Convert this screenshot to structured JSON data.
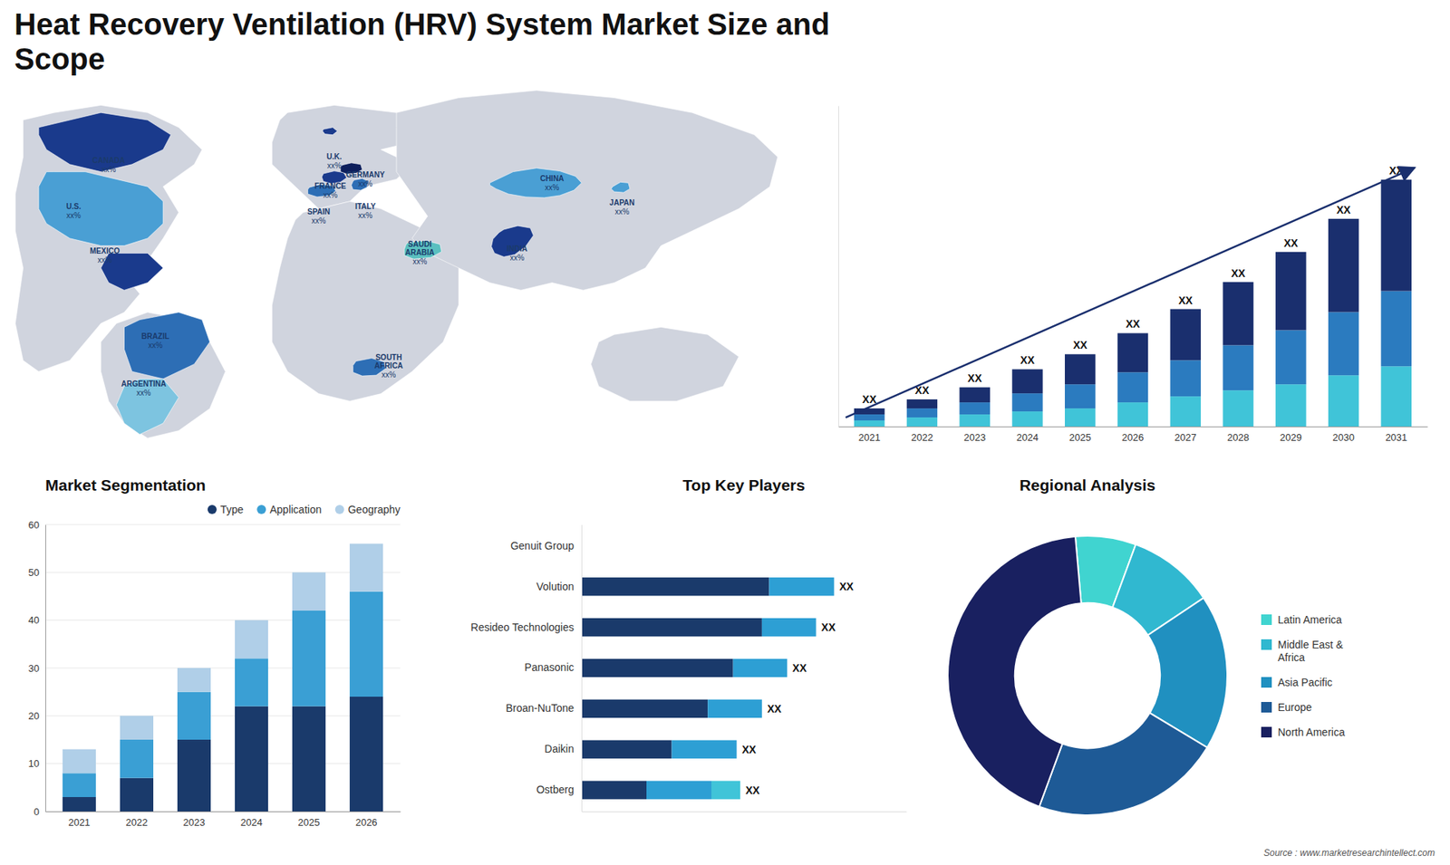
{
  "chart_data": [
    {
      "type": "map",
      "title": "Heat Recovery Ventilation (HRV) System Market Size and\nScope",
      "annotations": [
        {
          "text": "CANADA",
          "label": "xx%"
        },
        {
          "text": "U.S.",
          "label": "xx%"
        },
        {
          "text": "MEXICO",
          "label": "xx%"
        },
        {
          "text": "BRAZIL",
          "label": "xx%"
        },
        {
          "text": "ARGENTINA",
          "label": "xx%"
        },
        {
          "text": "U.K.",
          "label": "xx%"
        },
        {
          "text": "FRANCE",
          "label": "xx%"
        },
        {
          "text": "SPAIN",
          "label": "xx%"
        },
        {
          "text": "GERMANY",
          "label": "xx%"
        },
        {
          "text": "ITALY",
          "label": "xx%"
        },
        {
          "text": "SAUDI\nARABIA",
          "label": "xx%"
        },
        {
          "text": "SOUTH\nAFRICA",
          "label": "xx%"
        },
        {
          "text": "CHINA",
          "label": "xx%"
        },
        {
          "text": "INDIA",
          "label": "xx%"
        },
        {
          "text": "JAPAN",
          "label": "xx%"
        }
      ]
    },
    {
      "type": "bar",
      "stacked": true,
      "categories": [
        "2021",
        "2022",
        "2023",
        "2024",
        "2025",
        "2026",
        "2027",
        "2028",
        "2029",
        "2030",
        "2031"
      ],
      "series": [
        {
          "color": "#40c4d8",
          "values": [
            2,
            3,
            4,
            5,
            6,
            8,
            10,
            12,
            14,
            17,
            20
          ]
        },
        {
          "color": "#2b7bbf",
          "values": [
            2,
            3,
            4,
            6,
            8,
            10,
            12,
            15,
            18,
            21,
            25
          ]
        },
        {
          "color": "#1a2f6e",
          "values": [
            2,
            3,
            5,
            8,
            10,
            13,
            17,
            21,
            26,
            31,
            37
          ]
        }
      ],
      "ylim": [
        0,
        106.6
      ],
      "tick_labels": "x",
      "annotations": [
        "XX",
        "XX",
        "XX",
        "XX",
        "XX",
        "XX",
        "XX",
        "XX",
        "XX",
        "XX",
        "XX"
      ]
    },
    {
      "type": "bar",
      "title": "Market Segmentation",
      "stacked": true,
      "categories": [
        "2021",
        "2022",
        "2023",
        "2024",
        "2025",
        "2026"
      ],
      "series": [
        {
          "name": "Type",
          "color": "#1a3a6b",
          "values": [
            3,
            7,
            15,
            22,
            22,
            24
          ]
        },
        {
          "name": "Application",
          "color": "#3a9fd4",
          "values": [
            5,
            8,
            10,
            10,
            20,
            22
          ]
        },
        {
          "name": "Geography",
          "color": "#b0cfe8",
          "values": [
            5,
            5,
            5,
            8,
            8,
            10
          ]
        }
      ],
      "ylim": [
        0,
        60
      ],
      "yticks": [
        0,
        10,
        20,
        30,
        40,
        50,
        60
      ],
      "grid": true,
      "legend": "upper right"
    },
    {
      "type": "bar",
      "title": "Top Key Players",
      "orientation": "horizontal",
      "stacked": true,
      "categories": [
        "Genuit Group",
        "Volution",
        "Resideo Technologies",
        "Panasonic",
        "Broan-NuTone",
        "Daikin",
        "Ostberg"
      ],
      "series": [
        {
          "color": "#1a3a6b",
          "values": [
            0,
            52,
            50,
            42,
            35,
            25,
            18
          ]
        },
        {
          "color": "#2d9fd4",
          "values": [
            0,
            18,
            15,
            15,
            15,
            18,
            18
          ]
        },
        {
          "color": "#40c4d8",
          "values": [
            0,
            0,
            0,
            0,
            0,
            0,
            8
          ]
        }
      ],
      "xlim": [
        0,
        90
      ],
      "tick_labels": "y",
      "annotations": [
        null,
        "XX",
        "XX",
        "XX",
        "XX",
        "XX",
        "XX"
      ]
    },
    {
      "type": "pie",
      "title": "Regional Analysis",
      "categories": [
        "Latin America",
        "Middle East &\nAfrica",
        "Asia Pacific",
        "Europe",
        "North America"
      ],
      "values": [
        7,
        10,
        18,
        22,
        43
      ],
      "colors": [
        "#40d4d0",
        "#30b8d0",
        "#2090c0",
        "#1e5a96",
        "#192060"
      ],
      "legend": "right",
      "annotations": [
        "Source : www.marketresearchintellect.com"
      ]
    }
  ]
}
